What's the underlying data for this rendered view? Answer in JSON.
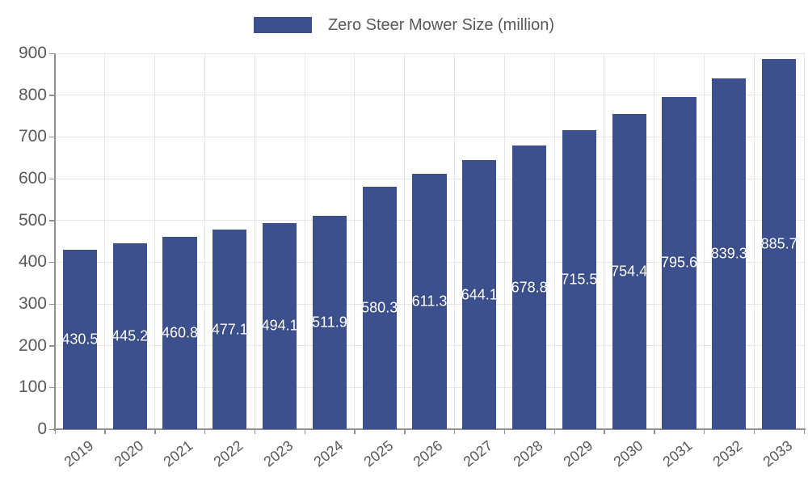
{
  "legend": {
    "label": "Zero Steer Mower Size (million)"
  },
  "colors": {
    "bar": "#3B508D",
    "grid": "#E4E4E9",
    "axis": "#8F8F8F",
    "tick_text": "#595959",
    "bar_label": "#FFFFFF"
  },
  "chart_data": {
    "type": "bar",
    "title": "",
    "xlabel": "",
    "ylabel": "",
    "legend": [
      "Zero Steer Mower Size (million)"
    ],
    "legend_position": "top-center",
    "grid": true,
    "categories": [
      "2019",
      "2020",
      "2021",
      "2022",
      "2023",
      "2024",
      "2025",
      "2026",
      "2027",
      "2028",
      "2029",
      "2030",
      "2031",
      "2032",
      "2033"
    ],
    "series": [
      {
        "name": "Zero Steer Mower Size (million)",
        "values": [
          430.5,
          445.2,
          460.8,
          477.1,
          494.1,
          511.9,
          580.3,
          611.3,
          644.1,
          678.8,
          715.5,
          754.4,
          795.6,
          839.3,
          885.7
        ]
      }
    ],
    "bar_labels_shown": true,
    "bar_label_decimals": 1,
    "ylim": [
      0,
      900
    ],
    "ytick_step": 100,
    "yticks": [
      0,
      100,
      200,
      300,
      400,
      500,
      600,
      700,
      800,
      900
    ]
  }
}
